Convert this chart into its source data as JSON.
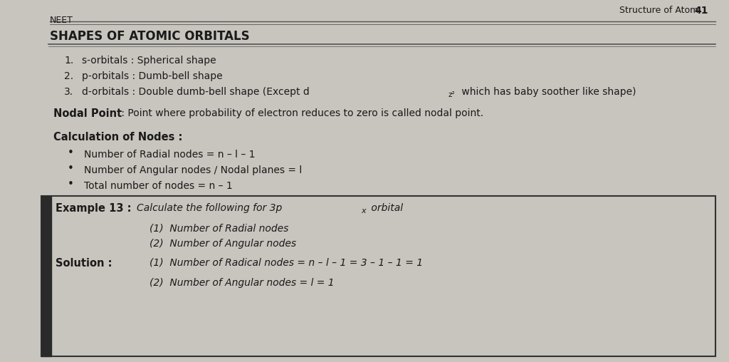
{
  "bg_color": "#c8c4be",
  "header_left": "NEET",
  "header_right": "Structure of Atom",
  "page_num": "41",
  "section_title": "SHAPES OF ATOMIC ORBITALS",
  "item_nums": [
    "1.",
    "2.",
    "3."
  ],
  "item_texts": [
    "s-orbitals : Spherical shape",
    "p-orbitals : Dumb-bell shape",
    "d-orbitals : Double dumb-bell shape (Except d"
  ],
  "item3_sub": "z²",
  "item3_end": " which has baby soother like shape)",
  "nodal_bold": "Nodal Point",
  "nodal_rest": " : Point where probability of electron reduces to zero is called nodal point.",
  "calc_title": "Calculation of Nodes :",
  "bullets": [
    "Number of Radial nodes = n – l – 1",
    "Number of Angular nodes / Nodal planes = l",
    "Total number of nodes = n – 1"
  ],
  "example_bold": "Example 13 : ",
  "example_italic1": "Calculate the following for 3p",
  "example_sub": "x",
  "example_italic2": " orbital",
  "example_sub_items": [
    "(1)  Number of Radial nodes",
    "(2)  Number of Angular nodes"
  ],
  "solution_bold": "Solution :",
  "solution_items": [
    "(1)  Number of Radical nodes = n – l – 1 = 3 – 1 – 1 = 1",
    "(2)  Number of Angular nodes = l = 1"
  ],
  "box_edge_color": "#333333",
  "box_accent_color": "#2a2a2a",
  "text_color": "#1a1a1a",
  "line_color": "#555555"
}
